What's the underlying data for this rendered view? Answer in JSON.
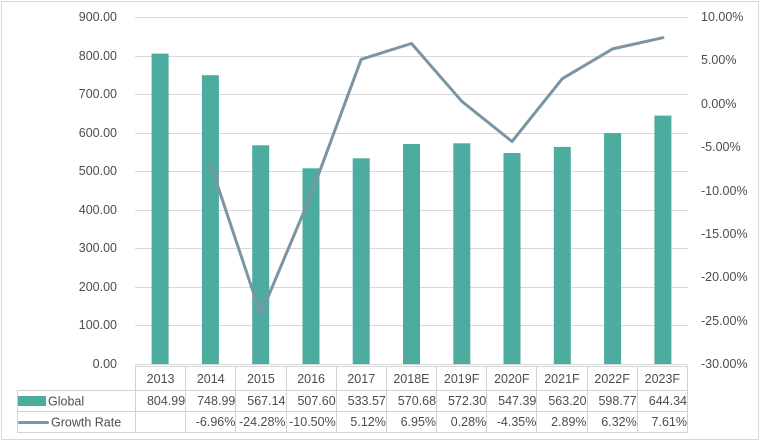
{
  "chart_data": {
    "type": "bar",
    "subtype": "combo-bar-line",
    "categories": [
      "2013",
      "2014",
      "2015",
      "2016",
      "2017",
      "2018E",
      "2019F",
      "2020F",
      "2021F",
      "2022F",
      "2023F"
    ],
    "series": [
      {
        "name": "Global",
        "type": "bar",
        "axis": "left",
        "color": "#4daca0",
        "values": [
          804.99,
          748.99,
          567.14,
          507.6,
          533.57,
          570.68,
          572.3,
          547.39,
          563.2,
          598.77,
          644.34
        ]
      },
      {
        "name": "Growth Rate",
        "type": "line",
        "axis": "right",
        "color": "#7b95a5",
        "values": [
          null,
          -6.96,
          -24.28,
          -10.5,
          5.12,
          6.95,
          0.28,
          -4.35,
          2.89,
          6.32,
          7.61
        ]
      }
    ],
    "left_axis": {
      "min": 0,
      "max": 900,
      "step": 100,
      "labels": [
        "900.00",
        "800.00",
        "700.00",
        "600.00",
        "500.00",
        "400.00",
        "300.00",
        "200.00",
        "100.00",
        "0.00"
      ]
    },
    "right_axis": {
      "min": -30,
      "max": 10,
      "step": 5,
      "labels": [
        "10.00%",
        "5.00%",
        "0.00%",
        "-5.00%",
        "-10.00%",
        "-15.00%",
        "-20.00%",
        "-25.00%",
        "-30.00%"
      ]
    },
    "grid": true,
    "legend_position": "table-left",
    "title": "",
    "xlabel": "",
    "ylabel": ""
  },
  "table": {
    "header": [
      "2013",
      "2014",
      "2015",
      "2016",
      "2017",
      "2018E",
      "2019F",
      "2020F",
      "2021F",
      "2022F",
      "2023F"
    ],
    "rows": [
      {
        "label": "Global",
        "swatch": "bar-swatch",
        "values": [
          "804.99",
          "748.99",
          "567.14",
          "507.60",
          "533.57",
          "570.68",
          "572.30",
          "547.39",
          "563.20",
          "598.77",
          "644.34"
        ]
      },
      {
        "label": "Growth Rate",
        "swatch": "line-swatch",
        "values": [
          "",
          "-6.96%",
          "-24.28%",
          "-10.50%",
          "5.12%",
          "6.95%",
          "0.28%",
          "-4.35%",
          "2.89%",
          "6.32%",
          "7.61%"
        ]
      }
    ]
  },
  "colors": {
    "bar": "#4daca0",
    "line": "#7b95a5",
    "grid": "#d9d9d9",
    "chart_border": "#d7d7d7",
    "table_border": "#cfd3d6",
    "text": "#4d4d4d",
    "background": "#ffffff"
  }
}
